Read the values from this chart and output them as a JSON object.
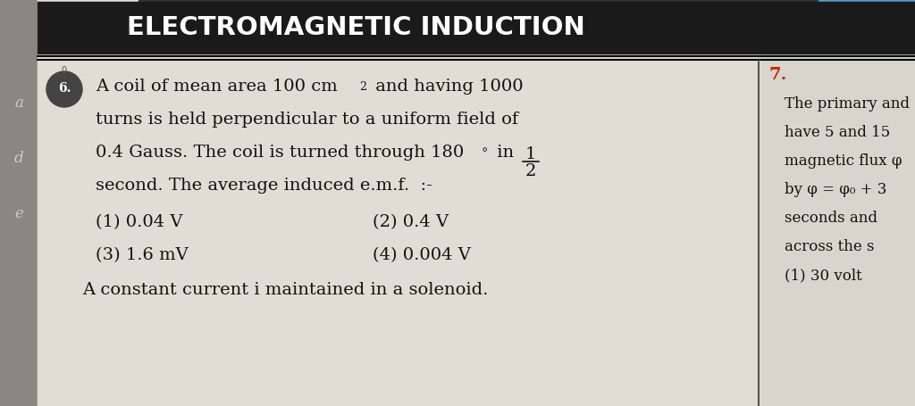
{
  "title": "ELECTROMAGNETIC INDUCTION",
  "q6_number": "6.",
  "q6_line1a": "A coil of mean area 100 cm",
  "q6_line1b": "2",
  "q6_line1c": " and having 1000",
  "q6_line2": "turns is held perpendicular to a uniform field of",
  "q6_line3a": "0.4 Gauss. The coil is turned through 180",
  "q6_line3b": "°",
  "q6_line3c": " in ",
  "q6_frac_num": "1",
  "q6_frac_den": "2",
  "q6_line4": "second. The average induced e.m.f. :-",
  "q6_opt1": "(1) 0.04 V",
  "q6_opt2": "(2) 0.4 V",
  "q6_opt3": "(3) 1.6 mV",
  "q6_opt4": "(4) 0.004 V",
  "q6_last": "A constant current i maintained in a solenoid.",
  "q7_number": "7.",
  "q7_line1": "The primary and",
  "q7_line2": "have 5 and 15",
  "q7_line3": "magnetic flux φ",
  "q7_line4": "by φ = φ₀ + 3",
  "q7_line5": "seconds and",
  "q7_line6": "across the s",
  "q7_line7": "(1) 30 volt",
  "bg_page": "#c8c4b8",
  "bg_content": "#e0ddd4",
  "bg_header": "#1a1a1a",
  "bg_right": "#d8d5cc",
  "header_text_color": "#ffffff",
  "body_text_color": "#111111",
  "left_bar_color": "#888880",
  "divider_color": "#555550",
  "q7_num_color": "#cc2200",
  "blue_top": "#5599cc"
}
